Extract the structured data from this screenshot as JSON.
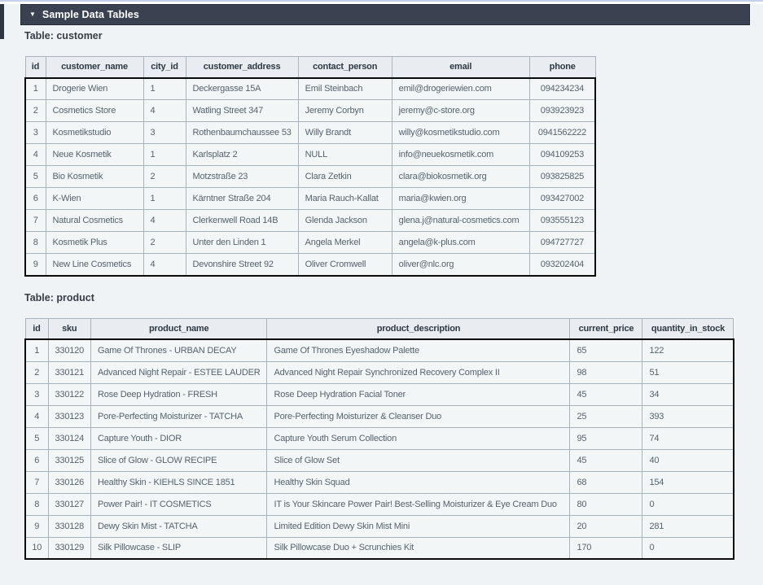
{
  "panel": {
    "collapse_icon": "▼",
    "title": "Sample Data Tables"
  },
  "colors": {
    "page_bg": "#eff3f5",
    "top_strip": "#c4d0ec",
    "panel_bg": "#3a4252",
    "panel_text": "#ffffff",
    "header_cell_bg": "#e9edf1",
    "body_cell_bg": "#f2f6f7",
    "cell_border": "#a9b3bc",
    "heavy_border": "#0a0a0a"
  },
  "tables": [
    {
      "label": "Table: customer",
      "name": "customer",
      "columns": [
        "id",
        "customer_name",
        "city_id",
        "customer_address",
        "contact_person",
        "email",
        "phone"
      ],
      "rows": [
        [
          "1",
          "Drogerie Wien",
          "1",
          "Deckergasse 15A",
          "Emil Steinbach",
          "emil@drogeriewien.com",
          "094234234"
        ],
        [
          "2",
          "Cosmetics Store",
          "4",
          "Watling Street 347",
          "Jeremy Corbyn",
          "jeremy@c-store.org",
          "093923923"
        ],
        [
          "3",
          "Kosmetikstudio",
          "3",
          "Rothenbaumchaussee 53",
          "Willy Brandt",
          "willy@kosmetikstudio.com",
          "0941562222"
        ],
        [
          "4",
          "Neue Kosmetik",
          "1",
          "Karlsplatz 2",
          "NULL",
          "info@neuekosmetik.com",
          "094109253"
        ],
        [
          "5",
          "Bio Kosmetik",
          "2",
          "Motzstraße 23",
          "Clara Zetkin",
          "clara@biokosmetik.org",
          "093825825"
        ],
        [
          "6",
          "K-Wien",
          "1",
          "Kärntner Straße 204",
          "Maria Rauch-Kallat",
          "maria@kwien.org",
          "093427002"
        ],
        [
          "7",
          "Natural Cosmetics",
          "4",
          "Clerkenwell Road 14B",
          "Glenda Jackson",
          "glena.j@natural-cosmetics.com",
          "093555123"
        ],
        [
          "8",
          "Kosmetik Plus",
          "2",
          "Unter den Linden 1",
          "Angela Merkel",
          "angela@k-plus.com",
          "094727727"
        ],
        [
          "9",
          "New Line Cosmetics",
          "4",
          "Devonshire Street 92",
          "Oliver Cromwell",
          "oliver@nlc.org",
          "093202404"
        ]
      ]
    },
    {
      "label": "Table: product",
      "name": "product",
      "columns": [
        "id",
        "sku",
        "product_name",
        "product_description",
        "current_price",
        "quantity_in_stock"
      ],
      "rows": [
        [
          "1",
          "330120",
          "Game Of Thrones - URBAN DECAY",
          "Game Of Thrones Eyeshadow Palette",
          "65",
          "122"
        ],
        [
          "2",
          "330121",
          "Advanced Night Repair - ESTEE LAUDER",
          "Advanced Night Repair Synchronized Recovery Complex II",
          "98",
          "51"
        ],
        [
          "3",
          "330122",
          "Rose Deep Hydration - FRESH",
          "Rose Deep Hydration Facial Toner",
          "45",
          "34"
        ],
        [
          "4",
          "330123",
          "Pore-Perfecting Moisturizer - TATCHA",
          "Pore-Perfecting Moisturizer & Cleanser Duo",
          "25",
          "393"
        ],
        [
          "5",
          "330124",
          "Capture Youth - DIOR",
          "Capture Youth Serum Collection",
          "95",
          "74"
        ],
        [
          "6",
          "330125",
          "Slice of Glow - GLOW RECIPE",
          "Slice of Glow Set",
          "45",
          "40"
        ],
        [
          "7",
          "330126",
          "Healthy Skin - KIEHLS SINCE 1851",
          "Healthy Skin Squad",
          "68",
          "154"
        ],
        [
          "8",
          "330127",
          "Power Pair! - IT COSMETICS",
          "IT is Your Skincare Power Pair! Best-Selling Moisturizer & Eye Cream Duo",
          "80",
          "0"
        ],
        [
          "9",
          "330128",
          "Dewy Skin Mist - TATCHA",
          "Limited Edition Dewy Skin Mist Mini",
          "20",
          "281"
        ],
        [
          "10",
          "330129",
          "Silk Pillowcase - SLIP",
          "Silk Pillowcase Duo + Scrunchies Kit",
          "170",
          "0"
        ]
      ]
    }
  ]
}
